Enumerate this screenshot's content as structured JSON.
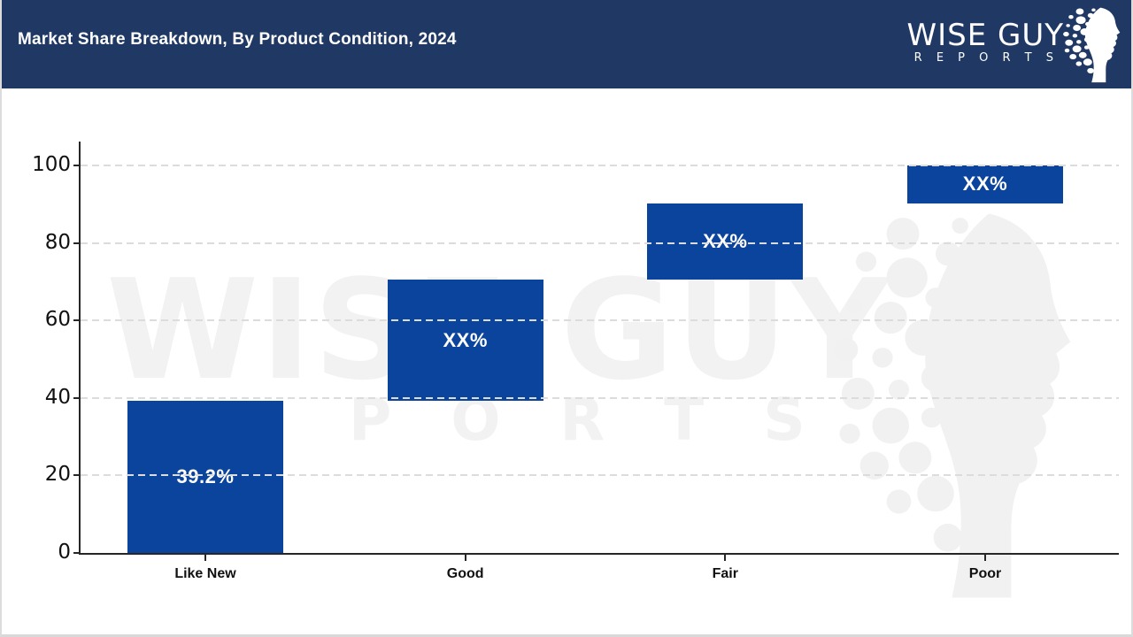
{
  "header": {
    "title": "Market Share Breakdown, By Product Condition, 2024",
    "logo": {
      "line1": "WISE GUY",
      "line2": "R E P O R T S"
    }
  },
  "watermark": {
    "line1": "WISE GUY",
    "line2": "P O R T S"
  },
  "colors": {
    "header_bg": "#1f3864",
    "bar": "#0a449c",
    "axis": "#262626",
    "gridline": "#dcdcdc",
    "bar_label": "#ffffff",
    "tick_text": "#111111",
    "watermark": "#f2f2f2"
  },
  "chart_data": {
    "type": "bar",
    "variant": "waterfall",
    "title": "Market Share Breakdown, By Product Condition, 2024",
    "categories": [
      "Like New",
      "Good",
      "Fair",
      "Poor"
    ],
    "segments": [
      {
        "category": "Like New",
        "start": 0,
        "end": 39.2,
        "label": "39.2%"
      },
      {
        "category": "Good",
        "start": 39.2,
        "end": 70.5,
        "label": "XX%"
      },
      {
        "category": "Fair",
        "start": 70.5,
        "end": 90.2,
        "label": "XX%"
      },
      {
        "category": "Poor",
        "start": 90.2,
        "end": 100,
        "label": "XX%"
      }
    ],
    "yticks": [
      0,
      20,
      40,
      60,
      80,
      100
    ],
    "ylim": [
      0,
      106
    ],
    "xlabel": "",
    "ylabel": "",
    "grid": "horizontal-dashed",
    "legend": "none",
    "bar_color": "#0a449c"
  }
}
